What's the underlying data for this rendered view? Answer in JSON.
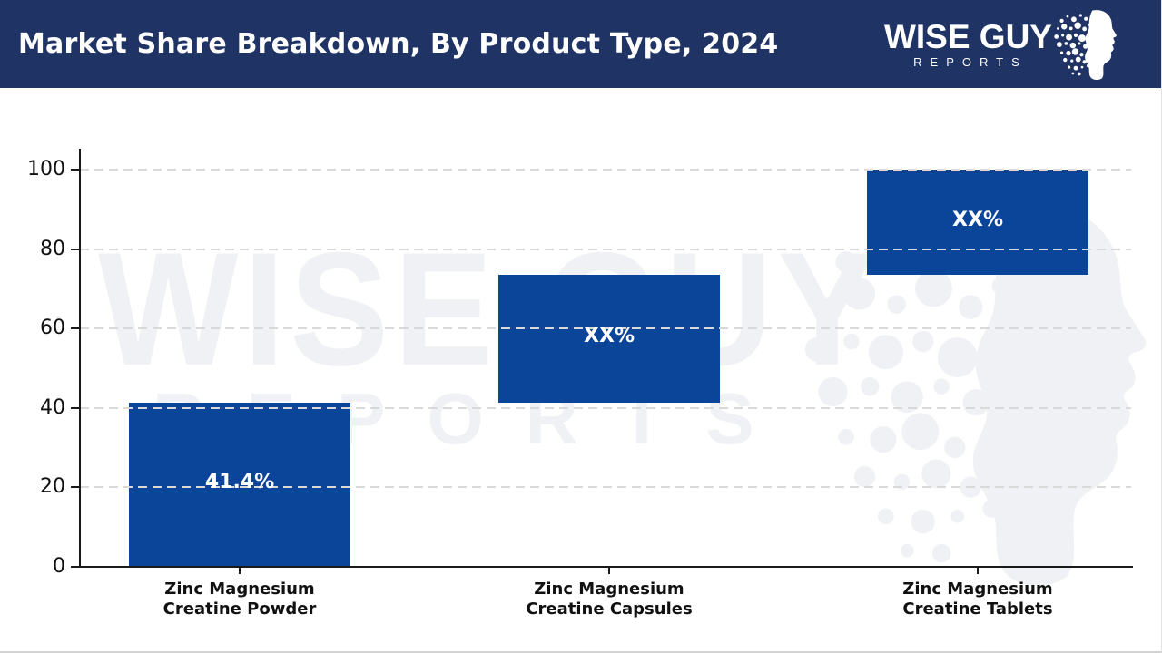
{
  "header": {
    "title": "Market Share Breakdown, By Product Type, 2024",
    "logo": {
      "name": "WISE GUY",
      "sub": "REPORTS",
      "icon": "wiseguy-face-logo"
    }
  },
  "watermark": {
    "name": "WISE GUY",
    "sub": "REPORTS",
    "icon": "wiseguy-face-watermark"
  },
  "chart_data": {
    "type": "bar",
    "variant": "stacked-waterfall",
    "title": "Market Share Breakdown, By Product Type, 2024",
    "categories": [
      "Zinc Magnesium Creatine Powder",
      "Zinc Magnesium Creatine Capsules",
      "Zinc Magnesium Creatine Tablets"
    ],
    "categories_lines": [
      [
        "Zinc Magnesium",
        "Creatine Powder"
      ],
      [
        "Zinc Magnesium",
        "Creatine Capsules"
      ],
      [
        "Zinc Magnesium",
        "Creatine Tablets"
      ]
    ],
    "segments": [
      {
        "category": "Zinc Magnesium Creatine Powder",
        "start": 0,
        "end": 41.4,
        "label": "41.4%"
      },
      {
        "category": "Zinc Magnesium Creatine Capsules",
        "start": 41.4,
        "end": 73.5,
        "label": "XX%"
      },
      {
        "category": "Zinc Magnesium Creatine Tablets",
        "start": 73.5,
        "end": 100,
        "label": "XX%"
      }
    ],
    "xlabel": "",
    "ylabel": "",
    "ylim": [
      0,
      100
    ],
    "yticks": [
      0,
      20,
      40,
      60,
      80,
      100
    ],
    "grid": {
      "axis": "y",
      "style": "dashed",
      "color": "#d9d9d9"
    },
    "legend": "none",
    "colors": {
      "bar": "#0b4599",
      "bar_label": "#ffffff",
      "header_bg": "#1f3365",
      "page_bg": "#ffffff",
      "watermark": "#f0f1f4",
      "axis": "#1a1a1a",
      "tick_label": "#111111"
    }
  }
}
